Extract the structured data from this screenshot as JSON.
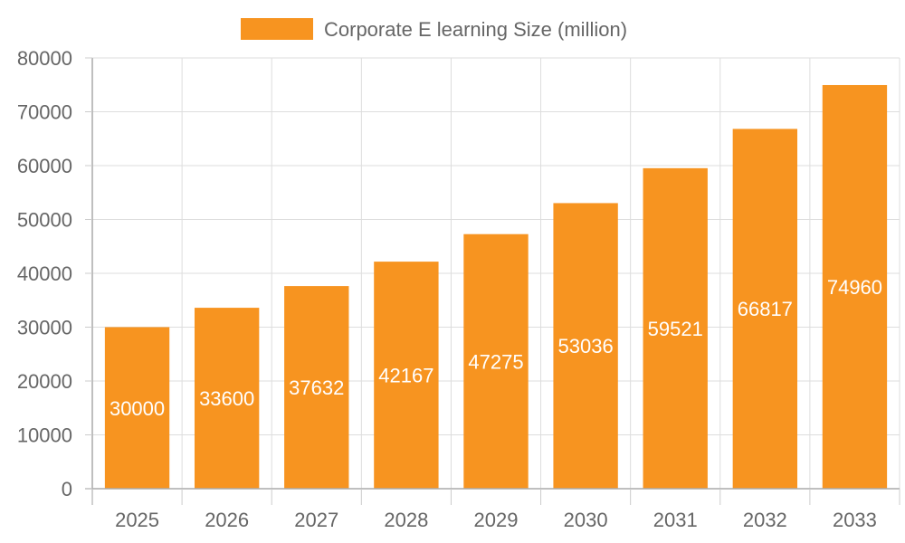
{
  "chart_data": {
    "type": "bar",
    "categories": [
      "2025",
      "2026",
      "2027",
      "2028",
      "2029",
      "2030",
      "2031",
      "2032",
      "2033"
    ],
    "series": [
      {
        "name": "Corporate E learning Size (million)",
        "values": [
          30000,
          33600,
          37632,
          42167,
          47275,
          53036,
          59521,
          66817,
          74960
        ],
        "color": "#F79420"
      }
    ],
    "data_labels": [
      "30000",
      "33600",
      "37632",
      "42167",
      "47275",
      "53036",
      "59521",
      "66817",
      "74960"
    ],
    "ylim": [
      0,
      80000
    ],
    "yticks": [
      "0",
      "10000",
      "20000",
      "30000",
      "40000",
      "50000",
      "60000",
      "70000",
      "80000"
    ],
    "grid": true,
    "legend_position": "top",
    "title": "",
    "xlabel": "",
    "ylabel": ""
  }
}
